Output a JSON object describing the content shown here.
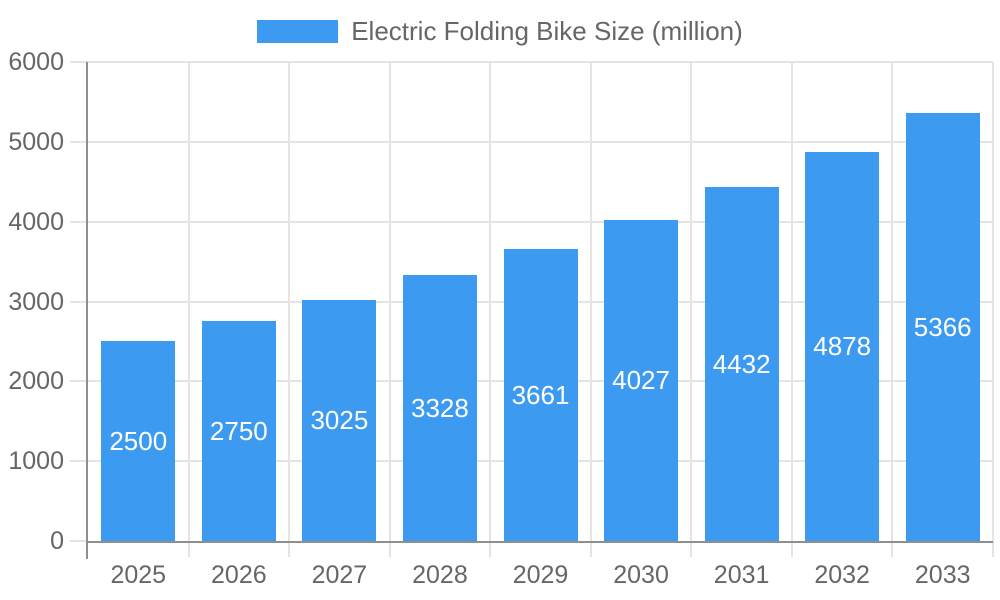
{
  "chart_data": {
    "type": "bar",
    "title": "Electric Folding Bike Size (million)",
    "categories": [
      "2025",
      "2026",
      "2027",
      "2028",
      "2029",
      "2030",
      "2031",
      "2032",
      "2033"
    ],
    "values": [
      2500,
      2750,
      3025,
      3328,
      3661,
      4027,
      4432,
      4878,
      5366
    ],
    "series": [
      {
        "name": "Electric Folding Bike Size (million)",
        "values": [
          2500,
          2750,
          3025,
          3328,
          3661,
          4027,
          4432,
          4878,
          5366
        ]
      }
    ],
    "xlabel": "",
    "ylabel": "",
    "ylim": [
      0,
      6000
    ],
    "y_ticks": [
      0,
      1000,
      2000,
      3000,
      4000,
      5000,
      6000
    ],
    "grid": true,
    "legend_position": "top-center",
    "bar_value_labels_inside": true,
    "colors": {
      "bar": "#3C9BF0",
      "bar_label": "#FFFFFF",
      "axis_text": "#666666",
      "grid_line": "#E4E4E4",
      "axis_line": "#8F8F8F",
      "background": "#FFFFFF"
    }
  }
}
